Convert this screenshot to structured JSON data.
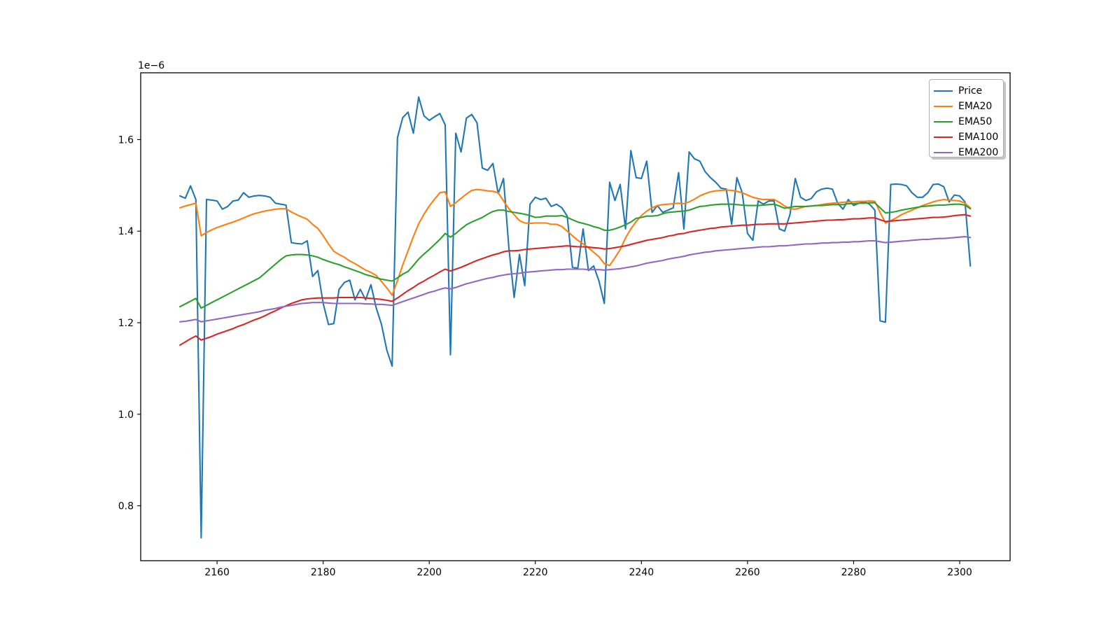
{
  "chart_data": {
    "type": "line",
    "title": "",
    "xlabel": "",
    "ylabel": "",
    "offset_text": "1e−6",
    "grid": false,
    "xlim": [
      2145.6,
      2309.5
    ],
    "ylim": [
      0.68,
      1.746
    ],
    "xticks": [
      2160,
      2180,
      2200,
      2220,
      2240,
      2260,
      2280,
      2300
    ],
    "yticks": [
      0.8,
      1.0,
      1.2,
      1.4,
      1.6
    ],
    "legend": {
      "position": "upper right",
      "entries": [
        "Price",
        "EMA20",
        "EMA50",
        "EMA100",
        "EMA200"
      ]
    },
    "x_start": 2153,
    "x_step": 1,
    "series": [
      {
        "name": "Price",
        "color": "#1f77b4",
        "values": [
          1.477,
          1.472,
          1.499,
          1.469,
          0.73,
          1.469,
          1.468,
          1.466,
          1.448,
          1.454,
          1.466,
          1.468,
          1.484,
          1.474,
          1.477,
          1.478,
          1.477,
          1.474,
          1.461,
          1.459,
          1.457,
          1.375,
          1.373,
          1.372,
          1.379,
          1.301,
          1.314,
          1.242,
          1.196,
          1.198,
          1.273,
          1.288,
          1.293,
          1.25,
          1.273,
          1.25,
          1.283,
          1.232,
          1.196,
          1.14,
          1.105,
          1.604,
          1.648,
          1.66,
          1.614,
          1.693,
          1.652,
          1.642,
          1.65,
          1.657,
          1.632,
          1.13,
          1.614,
          1.573,
          1.647,
          1.655,
          1.637,
          1.538,
          1.533,
          1.548,
          1.482,
          1.515,
          1.365,
          1.255,
          1.349,
          1.281,
          1.459,
          1.474,
          1.469,
          1.472,
          1.454,
          1.459,
          1.451,
          1.433,
          1.321,
          1.319,
          1.405,
          1.314,
          1.324,
          1.291,
          1.242,
          1.507,
          1.467,
          1.502,
          1.405,
          1.576,
          1.517,
          1.515,
          1.553,
          1.441,
          1.456,
          1.441,
          1.446,
          1.451,
          1.528,
          1.405,
          1.573,
          1.558,
          1.553,
          1.53,
          1.517,
          1.507,
          1.494,
          1.492,
          1.415,
          1.517,
          1.484,
          1.395,
          1.38,
          1.466,
          1.459,
          1.466,
          1.466,
          1.405,
          1.4,
          1.436,
          1.515,
          1.474,
          1.467,
          1.471,
          1.486,
          1.492,
          1.494,
          1.492,
          1.461,
          1.448,
          1.469,
          1.456,
          1.461,
          1.464,
          1.459,
          1.446,
          1.204,
          1.201,
          1.502,
          1.503,
          1.502,
          1.499,
          1.484,
          1.474,
          1.474,
          1.484,
          1.502,
          1.503,
          1.497,
          1.464,
          1.479,
          1.477,
          1.464,
          1.324
        ]
      },
      {
        "name": "EMA20",
        "color": "#ff7f0e",
        "values": [
          1.451,
          1.455,
          1.458,
          1.461,
          1.39,
          1.397,
          1.403,
          1.408,
          1.412,
          1.416,
          1.42,
          1.424,
          1.429,
          1.434,
          1.438,
          1.441,
          1.444,
          1.446,
          1.448,
          1.449,
          1.449,
          1.442,
          1.436,
          1.431,
          1.426,
          1.415,
          1.406,
          1.39,
          1.372,
          1.356,
          1.349,
          1.343,
          1.335,
          1.329,
          1.322,
          1.315,
          1.31,
          1.303,
          1.29,
          1.276,
          1.26,
          1.292,
          1.326,
          1.357,
          1.388,
          1.416,
          1.437,
          1.455,
          1.47,
          1.484,
          1.486,
          1.454,
          1.462,
          1.472,
          1.481,
          1.489,
          1.491,
          1.49,
          1.488,
          1.487,
          1.484,
          1.466,
          1.449,
          1.436,
          1.423,
          1.418,
          1.417,
          1.418,
          1.418,
          1.418,
          1.415,
          1.415,
          1.41,
          1.4,
          1.39,
          1.38,
          1.372,
          1.364,
          1.354,
          1.344,
          1.329,
          1.325,
          1.342,
          1.36,
          1.385,
          1.405,
          1.421,
          1.434,
          1.444,
          1.451,
          1.456,
          1.458,
          1.459,
          1.46,
          1.461,
          1.46,
          1.464,
          1.47,
          1.477,
          1.482,
          1.486,
          1.488,
          1.489,
          1.49,
          1.489,
          1.487,
          1.484,
          1.479,
          1.474,
          1.471,
          1.469,
          1.469,
          1.469,
          1.463,
          1.455,
          1.449,
          1.448,
          1.451,
          1.454,
          1.455,
          1.456,
          1.458,
          1.46,
          1.461,
          1.462,
          1.463,
          1.464,
          1.464,
          1.465,
          1.465,
          1.466,
          1.465,
          1.441,
          1.418,
          1.423,
          1.429,
          1.436,
          1.441,
          1.446,
          1.451,
          1.456,
          1.46,
          1.464,
          1.467,
          1.469,
          1.468,
          1.467,
          1.466,
          1.461,
          1.451
        ]
      },
      {
        "name": "EMA50",
        "color": "#2ca02c",
        "values": [
          1.235,
          1.241,
          1.247,
          1.253,
          1.232,
          1.238,
          1.244,
          1.25,
          1.256,
          1.262,
          1.268,
          1.274,
          1.28,
          1.286,
          1.292,
          1.298,
          1.308,
          1.318,
          1.328,
          1.338,
          1.346,
          1.348,
          1.349,
          1.349,
          1.348,
          1.346,
          1.343,
          1.338,
          1.334,
          1.33,
          1.327,
          1.322,
          1.318,
          1.314,
          1.31,
          1.305,
          1.302,
          1.298,
          1.295,
          1.293,
          1.291,
          1.298,
          1.306,
          1.312,
          1.325,
          1.339,
          1.35,
          1.36,
          1.371,
          1.382,
          1.395,
          1.387,
          1.395,
          1.405,
          1.414,
          1.42,
          1.425,
          1.43,
          1.437,
          1.443,
          1.446,
          1.446,
          1.443,
          1.441,
          1.439,
          1.437,
          1.434,
          1.43,
          1.431,
          1.433,
          1.433,
          1.433,
          1.434,
          1.43,
          1.425,
          1.42,
          1.417,
          1.414,
          1.41,
          1.407,
          1.402,
          1.402,
          1.405,
          1.409,
          1.414,
          1.42,
          1.428,
          1.43,
          1.433,
          1.433,
          1.434,
          1.438,
          1.441,
          1.442,
          1.443,
          1.444,
          1.446,
          1.45,
          1.454,
          1.455,
          1.457,
          1.458,
          1.459,
          1.459,
          1.459,
          1.458,
          1.457,
          1.456,
          1.456,
          1.456,
          1.457,
          1.458,
          1.459,
          1.455,
          1.45,
          1.452,
          1.454,
          1.454,
          1.454,
          1.455,
          1.456,
          1.456,
          1.457,
          1.458,
          1.458,
          1.458,
          1.46,
          1.46,
          1.461,
          1.461,
          1.462,
          1.462,
          1.451,
          1.44,
          1.441,
          1.443,
          1.446,
          1.448,
          1.45,
          1.452,
          1.454,
          1.455,
          1.456,
          1.457,
          1.457,
          1.458,
          1.459,
          1.459,
          1.457,
          1.449
        ]
      },
      {
        "name": "EMA100",
        "color": "#d62728",
        "values": [
          1.151,
          1.158,
          1.165,
          1.171,
          1.162,
          1.166,
          1.17,
          1.175,
          1.179,
          1.183,
          1.187,
          1.192,
          1.196,
          1.201,
          1.206,
          1.21,
          1.215,
          1.221,
          1.226,
          1.232,
          1.237,
          1.242,
          1.246,
          1.25,
          1.252,
          1.253,
          1.254,
          1.254,
          1.254,
          1.254,
          1.255,
          1.255,
          1.255,
          1.255,
          1.255,
          1.254,
          1.253,
          1.252,
          1.251,
          1.249,
          1.247,
          1.254,
          1.262,
          1.27,
          1.277,
          1.285,
          1.291,
          1.298,
          1.304,
          1.311,
          1.317,
          1.313,
          1.317,
          1.321,
          1.326,
          1.331,
          1.336,
          1.34,
          1.344,
          1.348,
          1.351,
          1.355,
          1.357,
          1.357,
          1.358,
          1.36,
          1.361,
          1.362,
          1.363,
          1.364,
          1.365,
          1.366,
          1.367,
          1.368,
          1.367,
          1.366,
          1.366,
          1.365,
          1.364,
          1.363,
          1.361,
          1.362,
          1.364,
          1.366,
          1.368,
          1.371,
          1.374,
          1.377,
          1.38,
          1.382,
          1.384,
          1.386,
          1.389,
          1.391,
          1.394,
          1.395,
          1.398,
          1.4,
          1.402,
          1.404,
          1.406,
          1.407,
          1.409,
          1.41,
          1.411,
          1.412,
          1.413,
          1.413,
          1.414,
          1.415,
          1.415,
          1.416,
          1.416,
          1.416,
          1.416,
          1.417,
          1.418,
          1.419,
          1.42,
          1.421,
          1.422,
          1.423,
          1.424,
          1.424,
          1.425,
          1.425,
          1.426,
          1.427,
          1.427,
          1.428,
          1.429,
          1.429,
          1.425,
          1.421,
          1.422,
          1.423,
          1.424,
          1.425,
          1.426,
          1.427,
          1.428,
          1.429,
          1.43,
          1.43,
          1.431,
          1.432,
          1.434,
          1.435,
          1.436,
          1.433
        ]
      },
      {
        "name": "EMA200",
        "color": "#9467bd",
        "values": [
          1.202,
          1.203,
          1.205,
          1.207,
          1.202,
          1.204,
          1.206,
          1.208,
          1.21,
          1.212,
          1.214,
          1.216,
          1.218,
          1.22,
          1.222,
          1.224,
          1.227,
          1.229,
          1.231,
          1.234,
          1.236,
          1.238,
          1.24,
          1.242,
          1.243,
          1.244,
          1.244,
          1.244,
          1.243,
          1.242,
          1.242,
          1.242,
          1.242,
          1.242,
          1.242,
          1.241,
          1.241,
          1.24,
          1.24,
          1.239,
          1.238,
          1.242,
          1.246,
          1.25,
          1.254,
          1.258,
          1.262,
          1.266,
          1.269,
          1.273,
          1.276,
          1.274,
          1.277,
          1.281,
          1.285,
          1.288,
          1.291,
          1.294,
          1.297,
          1.299,
          1.302,
          1.304,
          1.306,
          1.307,
          1.308,
          1.31,
          1.311,
          1.312,
          1.313,
          1.314,
          1.315,
          1.316,
          1.316,
          1.317,
          1.317,
          1.317,
          1.317,
          1.316,
          1.316,
          1.316,
          1.315,
          1.316,
          1.317,
          1.318,
          1.32,
          1.322,
          1.324,
          1.327,
          1.33,
          1.332,
          1.334,
          1.336,
          1.339,
          1.341,
          1.343,
          1.345,
          1.348,
          1.35,
          1.352,
          1.354,
          1.355,
          1.357,
          1.358,
          1.359,
          1.36,
          1.361,
          1.362,
          1.363,
          1.364,
          1.365,
          1.366,
          1.366,
          1.367,
          1.368,
          1.368,
          1.369,
          1.37,
          1.371,
          1.372,
          1.372,
          1.373,
          1.374,
          1.374,
          1.375,
          1.375,
          1.376,
          1.376,
          1.377,
          1.377,
          1.378,
          1.379,
          1.379,
          1.377,
          1.375,
          1.376,
          1.377,
          1.378,
          1.379,
          1.38,
          1.381,
          1.382,
          1.382,
          1.383,
          1.384,
          1.384,
          1.385,
          1.386,
          1.387,
          1.388,
          1.386
        ]
      }
    ]
  }
}
